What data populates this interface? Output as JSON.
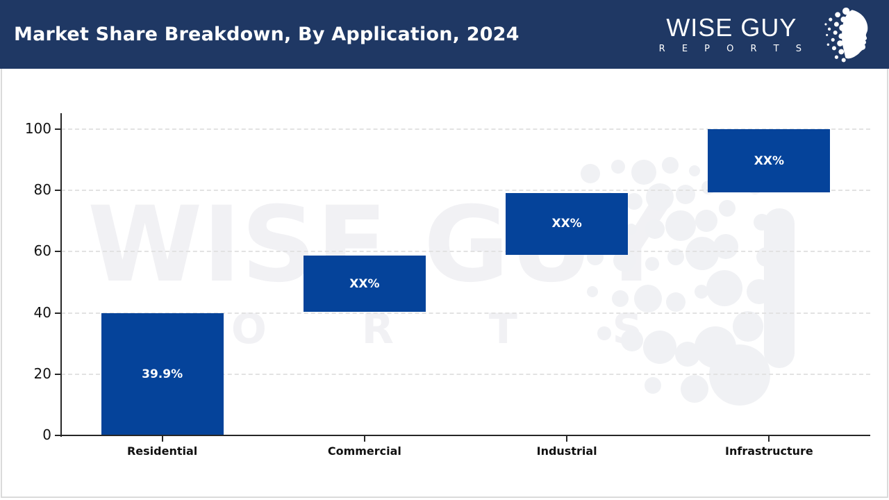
{
  "header": {
    "title": "Market Share Breakdown, By Application, 2024",
    "background": "#1f3864",
    "logo": {
      "line1": "WISE GUY",
      "line2": "R E P O R T S"
    }
  },
  "watermark": {
    "line1": "WISE GUY",
    "line2": "P O R T S"
  },
  "chart_data": {
    "type": "bar",
    "subtype": "waterfall",
    "title": "Market Share Breakdown, By Application, 2024",
    "xlabel": "",
    "ylabel": "",
    "categories": [
      "Residential",
      "Commercial",
      "Industrial",
      "Infrastructure"
    ],
    "segments": [
      {
        "category": "Residential",
        "start": 0,
        "end": 39.9,
        "label": "39.9%"
      },
      {
        "category": "Commercial",
        "start": 40.3,
        "end": 58.7,
        "label": "XX%"
      },
      {
        "category": "Industrial",
        "start": 59.0,
        "end": 79.1,
        "label": "XX%"
      },
      {
        "category": "Infrastructure",
        "start": 79.3,
        "end": 100.0,
        "label": "XX%"
      }
    ],
    "ylim": [
      0,
      100
    ],
    "yticks": [
      0,
      20,
      40,
      60,
      80,
      100
    ],
    "grid": "horizontal-dashed",
    "legend": "none",
    "bar_color": "#05439a",
    "bar_label_color": "#ffffff",
    "axis_color": "#262626"
  }
}
